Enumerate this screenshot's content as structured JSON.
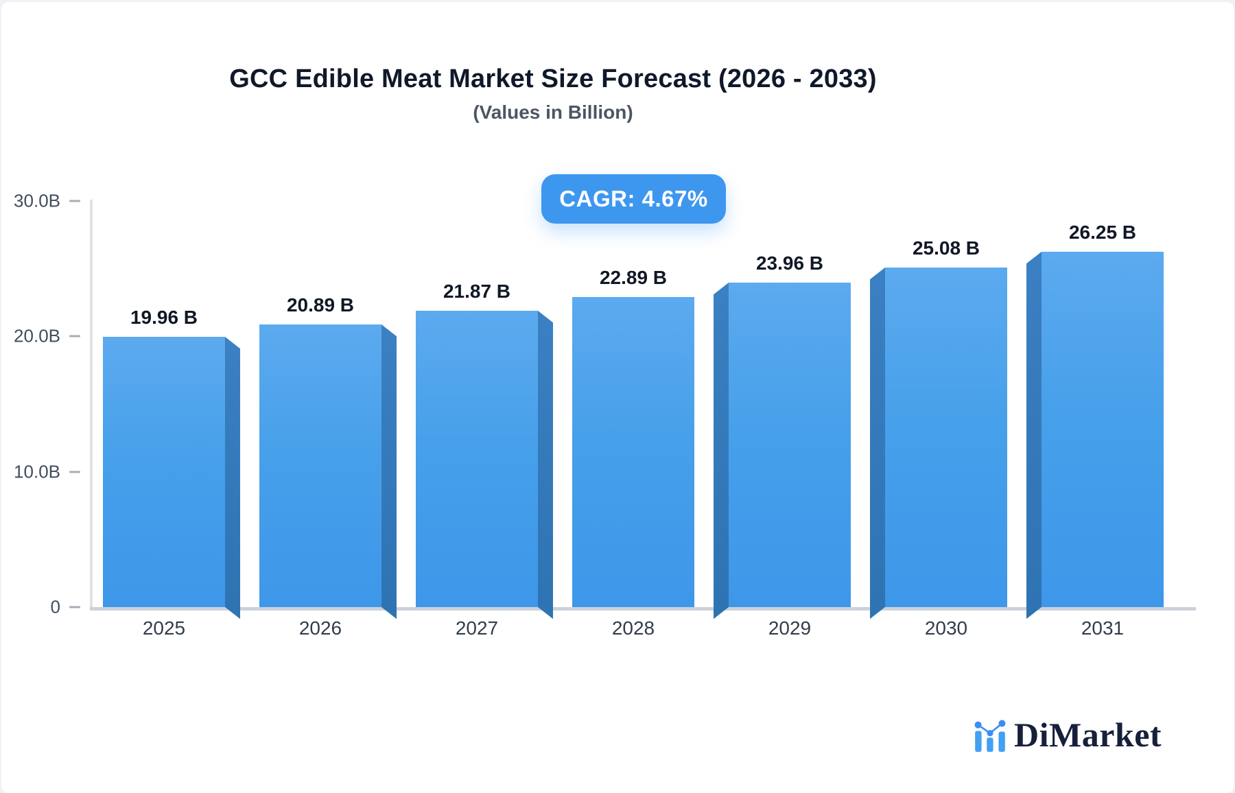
{
  "chart": {
    "title": "GCC Edible Meat Market Size Forecast (2026 - 2033)",
    "subtitle": "(Values in Billion)",
    "cagr_label": "CAGR: 4.67%"
  },
  "chart_data": {
    "type": "bar",
    "title": "GCC Edible Meat Market Size Forecast (2026 - 2033)",
    "subtitle": "(Values in Billion)",
    "annotation": "CAGR: 4.67%",
    "unit": "Billion",
    "categories": [
      "2025",
      "2026",
      "2027",
      "2028",
      "2029",
      "2030",
      "2031"
    ],
    "values": [
      19.96,
      20.89,
      21.87,
      22.89,
      23.96,
      25.08,
      26.25
    ],
    "value_labels": [
      "19.96 B",
      "20.89 B",
      "21.87 B",
      "22.89 B",
      "23.96 B",
      "25.08 B",
      "26.25 B"
    ],
    "ylim": [
      0,
      30
    ],
    "y_ticks": [
      {
        "label": "30.0B",
        "value": 30
      },
      {
        "label": "20.0B",
        "value": 20
      },
      {
        "label": "10.0B",
        "value": 10
      },
      {
        "label": "0",
        "value": 0
      }
    ],
    "grid": false,
    "legend": "none",
    "bar_style": "3d-perspective",
    "colors": {
      "bar_front_top": "#5caaef",
      "bar_front_bottom": "#3e97e9",
      "bar_side": "#2e74b3",
      "badge_bg": "#3e97ef",
      "badge_text": "#ffffff",
      "axis_line": "#dfe3e8",
      "baseline": "#ccd1d9",
      "tick": "#a6adb8",
      "title_text": "#10192a",
      "subtitle_text": "#4b5563"
    }
  },
  "branding": {
    "logo_text": "DiMarket",
    "logo_icon": "mini-bar-chart-icon",
    "logo_color": "#3b8df2"
  }
}
